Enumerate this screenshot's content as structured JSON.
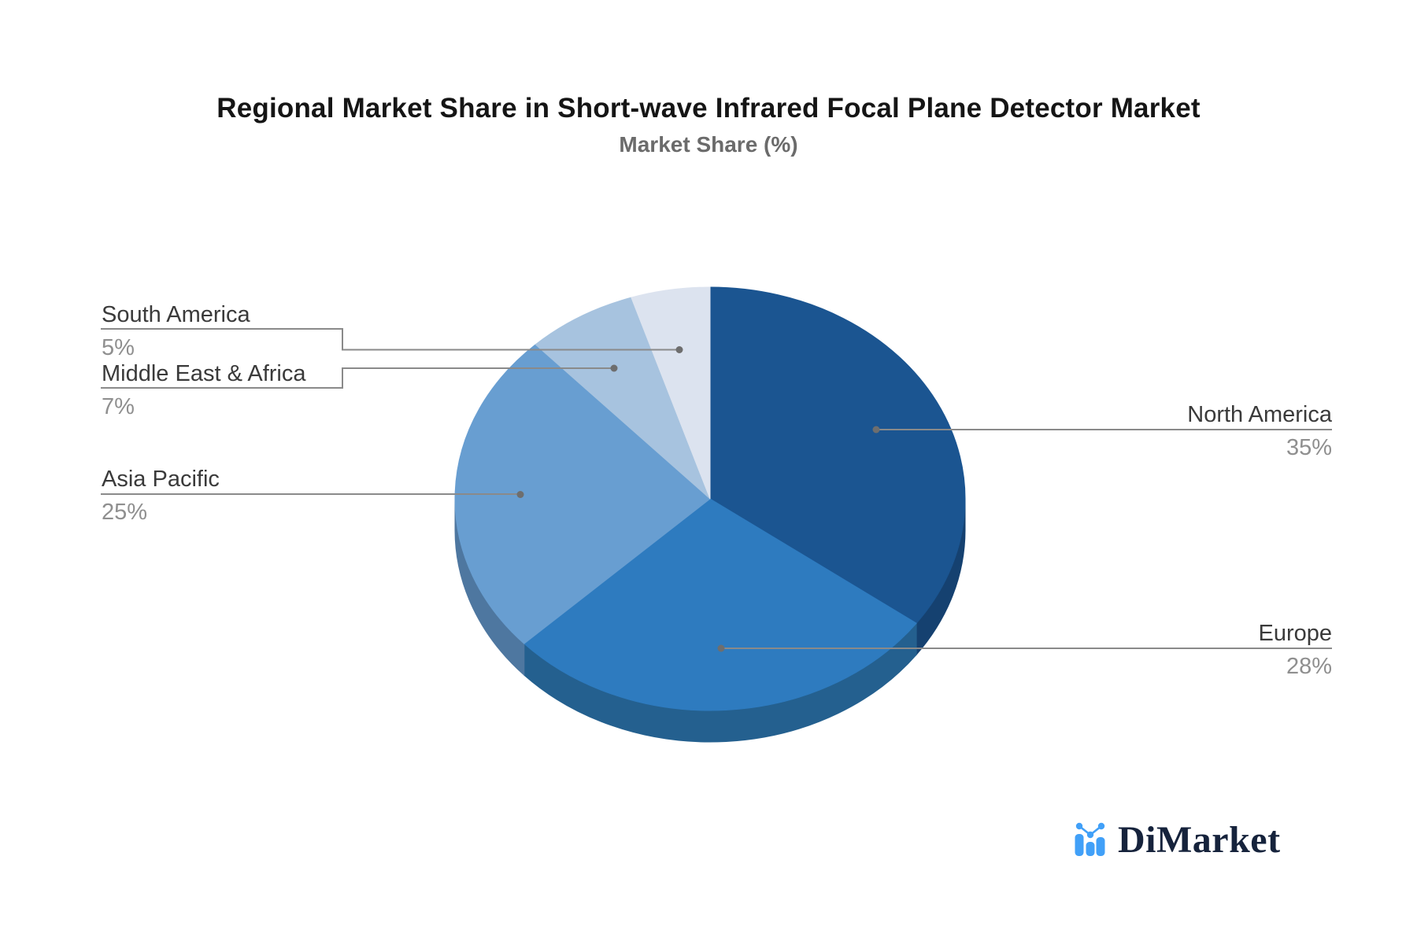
{
  "header": {
    "title": "Regional Market Share in Short-wave Infrared Focal Plane Detector Market",
    "subtitle": "Market Share (%)"
  },
  "chart_data": {
    "type": "pie",
    "style": "3d",
    "title": "Regional Market Share in Short-wave Infrared Focal Plane Detector Market",
    "series_label": "Market Share (%)",
    "unit": "%",
    "start_angle": "12-o-clock",
    "direction": "clockwise",
    "legend_position": "callout-labels",
    "slices": [
      {
        "label": "North America",
        "value": 35,
        "pct_label": "35%",
        "color": "#1b5591",
        "rim_color": "#154170"
      },
      {
        "label": "Europe",
        "value": 28,
        "pct_label": "28%",
        "color": "#2e7bbf",
        "rim_color": "#24608f"
      },
      {
        "label": "Asia Pacific",
        "value": 25,
        "pct_label": "25%",
        "color": "#689ed1",
        "rim_color": "#4e77a0"
      },
      {
        "label": "Middle East & Africa",
        "value": 7,
        "pct_label": "7%",
        "color": "#a7c3df",
        "rim_color": "#7e93a8"
      },
      {
        "label": "South America",
        "value": 5,
        "pct_label": "5%",
        "color": "#dce3ef",
        "rim_color": "#a6abb4"
      }
    ]
  },
  "callout_style": {
    "line_color": "#8a8a8a",
    "dot_color": "#6e6e6e",
    "label_color": "#3a3a3a",
    "pct_color": "#8f8f8f"
  },
  "logo": {
    "text": "DiMarket",
    "icon": "bar-chart-trend-icon",
    "icon_color": "#41a0f8",
    "text_color": "#16233c"
  }
}
